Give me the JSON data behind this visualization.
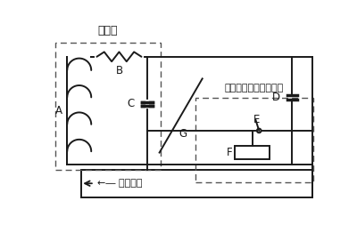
{
  "bg_color": "#ffffff",
  "line_color": "#1a1a1a",
  "dash_color": "#555555",
  "label_A": "A",
  "label_B": "B",
  "label_C": "C",
  "label_D": "D",
  "label_E": "E",
  "label_F": "F",
  "label_G": "G",
  "title_chijoushi": "地上子",
  "title_relay": "地上子制御用リレー笱",
  "label_signal": "←― 信号機へ",
  "fig_width": 4.0,
  "fig_height": 2.62,
  "dpi": 100
}
